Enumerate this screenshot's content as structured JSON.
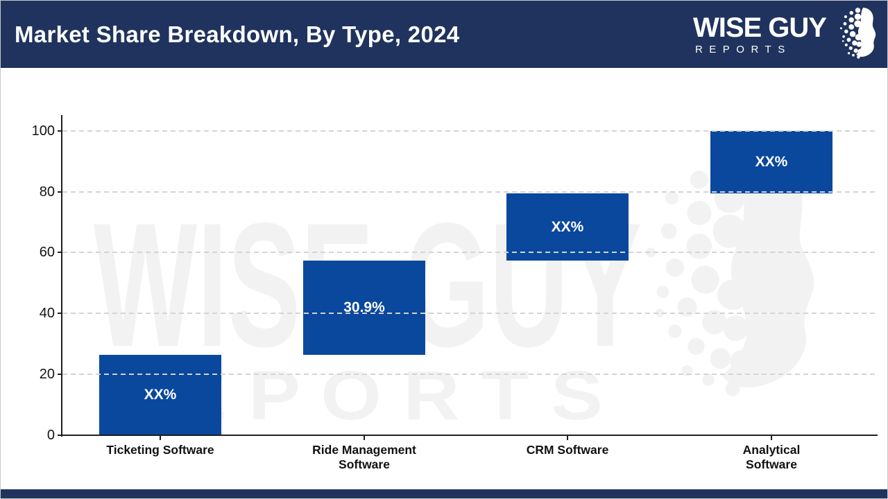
{
  "header": {
    "title": "Market Share Breakdown, By Type, 2024",
    "logo": {
      "brand": "WISE GUY",
      "sub": "REPORTS"
    }
  },
  "watermark": {
    "brand": "WISE GUY",
    "sub": "R E P O R T S"
  },
  "chart_data": {
    "type": "bar",
    "subtype": "waterfall",
    "title": "Market Share Breakdown, By Type, 2024",
    "categories": [
      "Ticketing Software",
      "Ride Management\nSoftware",
      "CRM Software",
      "Analytical\nSoftware"
    ],
    "series": [
      {
        "name": "Market share (%)",
        "segments": [
          {
            "category": "Ticketing Software",
            "start": 0,
            "end": 26.4,
            "label": "XX%"
          },
          {
            "category": "Ride Management Software",
            "start": 26.4,
            "end": 57.3,
            "label": "30.9%"
          },
          {
            "category": "CRM Software",
            "start": 57.3,
            "end": 79.5,
            "label": "XX%"
          },
          {
            "category": "Analytical Software",
            "start": 79.5,
            "end": 100,
            "label": "XX%"
          }
        ]
      }
    ],
    "xlabel": "",
    "ylabel": "",
    "ylim": [
      0,
      100
    ],
    "yticks": [
      0,
      20,
      40,
      60,
      80,
      100
    ],
    "grid": "horizontal-dashed",
    "legend": "none",
    "bar_color": "#0a489e",
    "bar_label_color": "#ffffff"
  },
  "colors": {
    "header_bg": "#1f335e",
    "footer_bg": "#1f335e",
    "bar": "#0a489e",
    "axis": "#1f1f1f",
    "gridline": "#d4d4d4",
    "watermark": "#f2f2f2"
  }
}
